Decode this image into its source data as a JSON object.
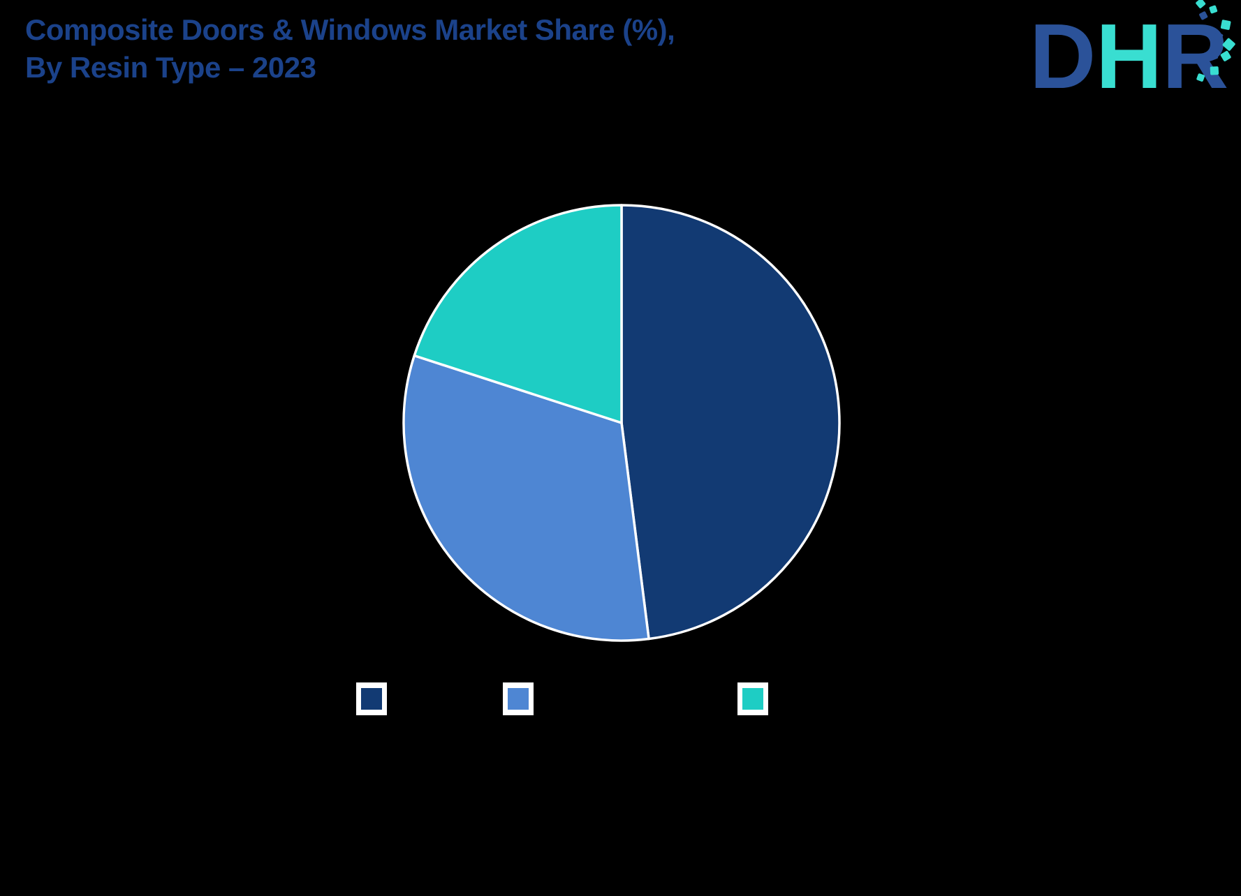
{
  "page": {
    "background_color": "#000000"
  },
  "header": {
    "title_line1": "Composite Doors & Windows Market Share (%),",
    "title_line2": "By Resin Type – 2023",
    "title_color": "#1b428a"
  },
  "logo": {
    "name": "DHR",
    "letters": [
      {
        "char": "D",
        "color": "#2b5299"
      },
      {
        "char": "H",
        "color": "#39ded1"
      },
      {
        "char": "R",
        "color": "#2b5299"
      }
    ],
    "dot_colors": {
      "outer": "#39ded1",
      "inner": "#2b5299"
    }
  },
  "chart_data": {
    "type": "pie",
    "title": "Composite Doors & Windows Market Share (%), By Resin Type – 2023",
    "values": [
      48,
      32,
      20
    ],
    "unit": "%",
    "slice_colors": [
      "#123a73",
      "#4e86d3",
      "#1ecdc4"
    ],
    "start_angle_deg": 0,
    "direction": "clockwise",
    "separator_color": "#ffffff",
    "legend_position": "bottom",
    "legend_labels": [
      "",
      "",
      ""
    ],
    "data_labels_visible": false
  }
}
